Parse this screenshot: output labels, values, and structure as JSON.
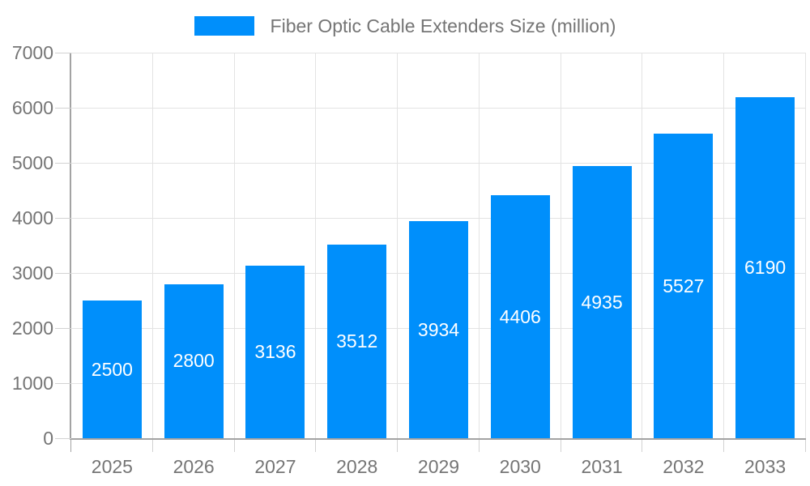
{
  "chart_data": {
    "type": "bar",
    "title": "",
    "legend": "Fiber Optic Cable Extenders Size (million)",
    "legend_position": "top-center",
    "categories": [
      "2025",
      "2026",
      "2027",
      "2028",
      "2029",
      "2030",
      "2031",
      "2032",
      "2033"
    ],
    "values": [
      2500,
      2800,
      3136,
      3512,
      3934,
      4406,
      4935,
      5527,
      6190
    ],
    "bar_labels": [
      "2500",
      "2800",
      "3136",
      "3512",
      "3934",
      "4406",
      "4935",
      "5527",
      "6190"
    ],
    "xlabel": "",
    "ylabel": "",
    "ylim": [
      0,
      7000
    ],
    "ytick_step": 1000,
    "ytick_labels": [
      "0",
      "1000",
      "2000",
      "3000",
      "4000",
      "5000",
      "6000",
      "7000"
    ],
    "grid": "both",
    "colors": {
      "bar": "#008FFB",
      "bar_label_text": "#FFFFFF",
      "axis_text": "#757575",
      "legend_text": "#757575",
      "gridline": "#E3E3E3",
      "axis_line": "#A3A3A3",
      "tick_mark": "#D2D2D2",
      "background": "#FFFFFF"
    }
  }
}
